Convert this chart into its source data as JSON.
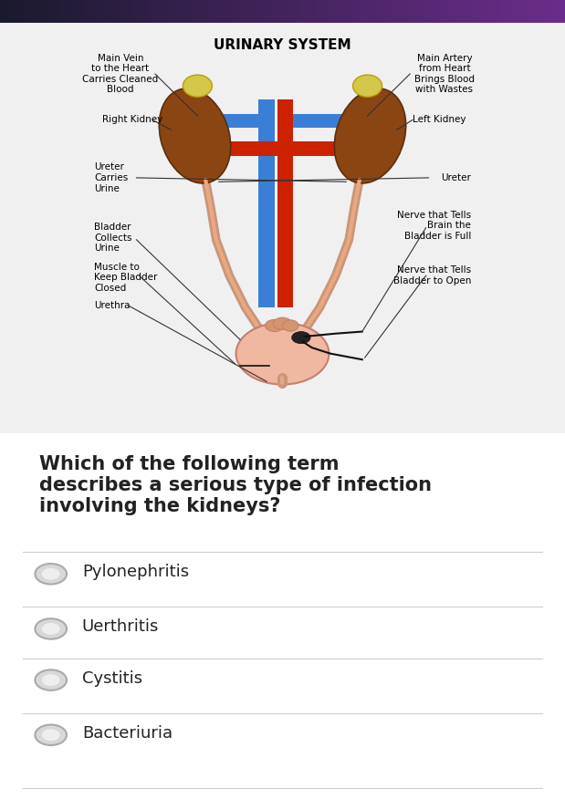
{
  "title": "URINARY SYSTEM",
  "title_bar_colors": [
    "#1a1a2e",
    "#6b2d8b"
  ],
  "bg_color": "#f0f0f0",
  "diagram_bg": "#ffffff",
  "question_text": "Which of the following term\ndescribes a serious type of infection\ninvolving the kidneys?",
  "options": [
    "Pylonephritis",
    "Uerthritis",
    "Cystitis",
    "Bacteriuria"
  ],
  "kidney_color": "#8B4513",
  "adrenal_color": "#d4c84a",
  "ureter_tube_color": "#c9967a",
  "bladder_color": "#f0b8a0",
  "vein_color": "#3a7fd5",
  "artery_color": "#cc2200",
  "line_color": "#333333",
  "label_fontsize": 7.5,
  "option_fontsize": 13,
  "question_fontsize": 15
}
